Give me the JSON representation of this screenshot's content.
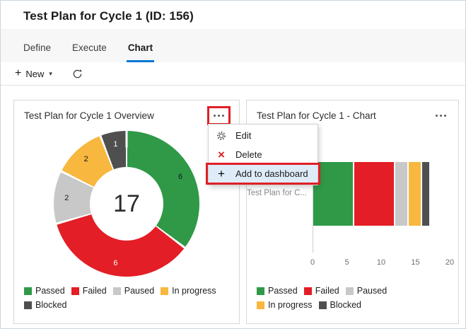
{
  "header": {
    "title": "Test Plan for Cycle 1 (ID: 156)"
  },
  "tabs": [
    {
      "label": "Define",
      "active": false
    },
    {
      "label": "Execute",
      "active": false
    },
    {
      "label": "Chart",
      "active": true
    }
  ],
  "toolbar": {
    "new_label": "New"
  },
  "colors": {
    "accent": "#0078d4",
    "callout": "#e01f26",
    "passed": "#2f9948",
    "failed": "#e31e26",
    "paused": "#c8c8c8",
    "in_progress": "#f8b73e",
    "blocked": "#4f4f4f",
    "menu_highlight": "#deecf9"
  },
  "legend": {
    "items": [
      {
        "label": "Passed",
        "color": "#2f9948"
      },
      {
        "label": "Failed",
        "color": "#e31e26"
      },
      {
        "label": "Paused",
        "color": "#c8c8c8"
      },
      {
        "label": "In progress",
        "color": "#f8b73e"
      },
      {
        "label": "Blocked",
        "color": "#4f4f4f"
      }
    ]
  },
  "cards": {
    "overview": {
      "title": "Test Plan for Cycle 1 Overview",
      "total": "17"
    },
    "chart": {
      "title": "Test Plan for Cycle 1 - Chart",
      "category_label": "Test Plan for C..."
    }
  },
  "context_menu": {
    "items": [
      {
        "label": "Edit",
        "icon": "gear-icon",
        "highlighted": false
      },
      {
        "label": "Delete",
        "icon": "delete-x-icon",
        "highlighted": false
      },
      {
        "label": "Add to dashboard",
        "icon": "plus-icon",
        "highlighted": true
      }
    ]
  },
  "chart_data": [
    {
      "type": "pie",
      "subtype": "donut",
      "title": "Test Plan for Cycle 1 Overview",
      "center_total": 17,
      "categories": [
        "Passed",
        "Failed",
        "Paused",
        "In progress",
        "Blocked"
      ],
      "values": [
        6,
        6,
        2,
        2,
        1
      ],
      "colors": [
        "#2f9948",
        "#e31e26",
        "#c8c8c8",
        "#f8b73e",
        "#4f4f4f"
      ],
      "label_colors": [
        "#1b1b1b",
        "#ffffff",
        "#1b1b1b",
        "#1b1b1b",
        "#ffffff"
      ],
      "legend_position": "bottom"
    },
    {
      "type": "bar",
      "subtype": "horizontal-stacked",
      "title": "Test Plan for Cycle 1 - Chart",
      "categories": [
        "Test Plan for C..."
      ],
      "series": [
        {
          "name": "Passed",
          "values": [
            6
          ]
        },
        {
          "name": "Failed",
          "values": [
            6
          ]
        },
        {
          "name": "Paused",
          "values": [
            2
          ]
        },
        {
          "name": "In progress",
          "values": [
            2
          ]
        },
        {
          "name": "Blocked",
          "values": [
            1
          ]
        }
      ],
      "colors": [
        "#2f9948",
        "#e31e26",
        "#c8c8c8",
        "#f8b73e",
        "#4f4f4f"
      ],
      "xlim": [
        0,
        20
      ],
      "xticks": [
        0,
        5,
        10,
        15,
        20
      ],
      "legend_position": "bottom"
    }
  ]
}
